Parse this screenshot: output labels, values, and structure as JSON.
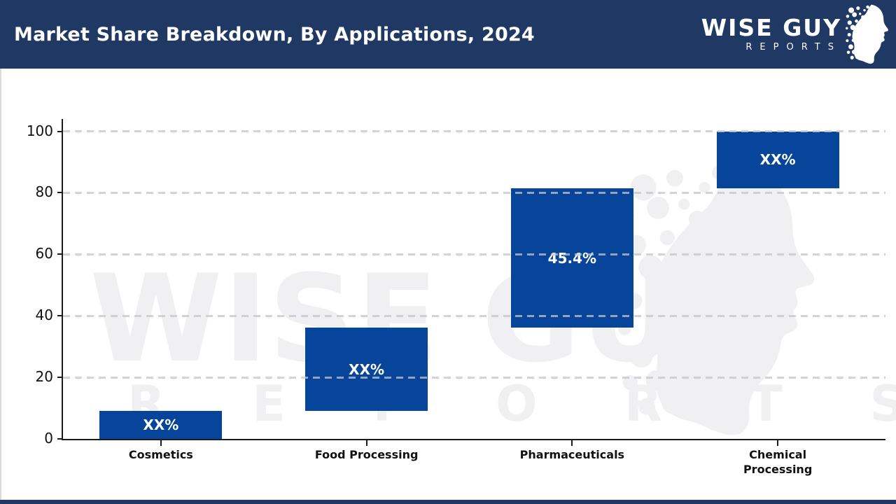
{
  "header": {
    "title": "Market Share Breakdown, By Applications, 2024",
    "logo": {
      "line1": "WISE GUY",
      "line2": "REPORTS"
    }
  },
  "watermark": {
    "line1": "WISE GU",
    "line2": "R E P O R T S"
  },
  "colors": {
    "header_navy": "#1f3864",
    "bar_blue": "#06459a",
    "axis": "#1c1c1c",
    "grid": "#c3c6cb",
    "watermark": "#f0f0f2",
    "bar_label": "#ffffff"
  },
  "chart_data": {
    "type": "bar",
    "variant": "floating-waterfall",
    "title": "Market Share Breakdown, By Applications, 2024",
    "categories": [
      "Cosmetics",
      "Food Processing",
      "Pharmaceuticals",
      "Chemical Processing"
    ],
    "segments": [
      {
        "category": "Cosmetics",
        "start": 0,
        "end": 9.1,
        "value": 9.1,
        "label": "XX%"
      },
      {
        "category": "Food Processing",
        "start": 9.1,
        "end": 36.1,
        "value": 27.0,
        "label": "XX%"
      },
      {
        "category": "Pharmaceuticals",
        "start": 36.1,
        "end": 81.5,
        "value": 45.4,
        "label": "45.4%"
      },
      {
        "category": "Chemical Processing",
        "start": 81.5,
        "end": 100,
        "value": 18.5,
        "label": "XX%"
      }
    ],
    "xlabel": "",
    "ylabel": "",
    "yticks": [
      0,
      20,
      40,
      60,
      80,
      100
    ],
    "ylim": [
      0,
      104
    ],
    "grid": "horizontal dashed, drawn above bars",
    "legend": "none",
    "bar_color": "#06459a",
    "label_color": "#ffffff"
  }
}
